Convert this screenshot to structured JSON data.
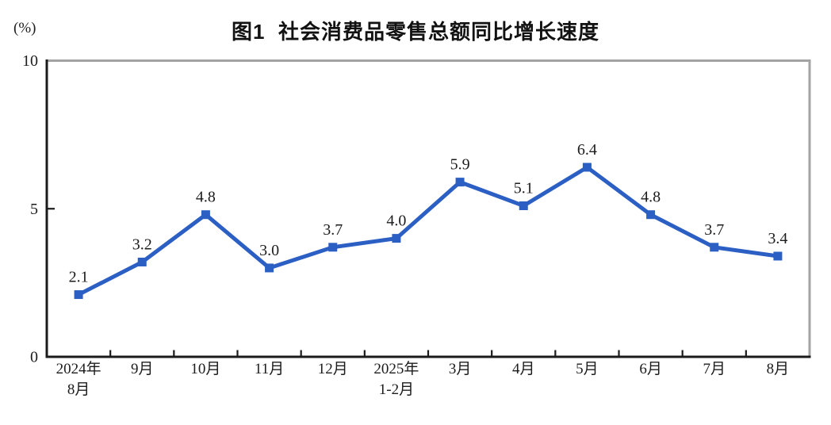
{
  "figure": {
    "title": "图1  社会消费品零售总额同比增长速度",
    "unit_label": "(%)"
  },
  "chart_data": {
    "type": "line",
    "title": "图1  社会消费品零售总额同比增长速度",
    "unit": "(%)",
    "categories": [
      [
        "2024年",
        "8月"
      ],
      [
        "9月"
      ],
      [
        "10月"
      ],
      [
        "11月"
      ],
      [
        "12月"
      ],
      [
        "2025年",
        "1-2月"
      ],
      [
        "3月"
      ],
      [
        "4月"
      ],
      [
        "5月"
      ],
      [
        "6月"
      ],
      [
        "7月"
      ],
      [
        "8月"
      ]
    ],
    "values": [
      2.1,
      3.2,
      4.8,
      3.0,
      3.7,
      4.0,
      5.9,
      5.1,
      6.4,
      4.8,
      3.7,
      3.4
    ],
    "data_labels": [
      "2.1",
      "3.2",
      "4.8",
      "3.0",
      "3.7",
      "4.0",
      "5.9",
      "5.1",
      "6.4",
      "4.8",
      "3.7",
      "3.4"
    ],
    "y_ticks": [
      0,
      5,
      10
    ],
    "ylim": [
      0,
      10
    ],
    "grid": false,
    "legend": "none",
    "marker": "square",
    "colors": {
      "line": "#2b5fc3",
      "marker": "#2b5fc3",
      "axis": "#1b1b1b",
      "border_gray": "#a3a3a3",
      "text": "#1c1c1c"
    }
  }
}
